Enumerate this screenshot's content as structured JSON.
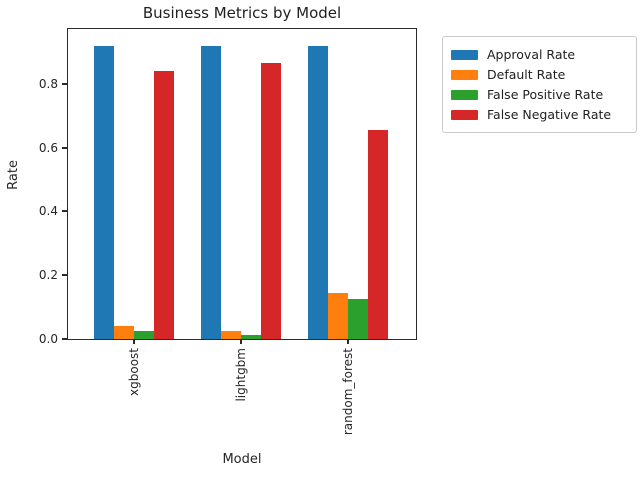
{
  "figure": {
    "background": "#ffffff",
    "spine_color": "#2b2b2b",
    "legend_border_color": "#cccccc"
  },
  "chart_data": {
    "type": "bar",
    "title": "Business Metrics by Model",
    "xlabel": "Model",
    "ylabel": "Rate",
    "categories": [
      "xgboost",
      "lightgbm",
      "random_forest"
    ],
    "series": [
      {
        "name": "Approval Rate",
        "color": "#1f77b4",
        "values": [
          0.92,
          0.92,
          0.92
        ]
      },
      {
        "name": "Default Rate",
        "color": "#ff7f0e",
        "values": [
          0.04,
          0.025,
          0.145
        ]
      },
      {
        "name": "False Positive Rate",
        "color": "#2ca02c",
        "values": [
          0.025,
          0.012,
          0.125
        ]
      },
      {
        "name": "False Negative Rate",
        "color": "#d62728",
        "values": [
          0.84,
          0.865,
          0.655
        ]
      }
    ],
    "ylim": [
      0,
      0.972
    ],
    "yticks": [
      0.0,
      0.2,
      0.4,
      0.6,
      0.8
    ],
    "xtick_rotation": 90,
    "grid": false,
    "legend_position": "outside-upper-right"
  }
}
